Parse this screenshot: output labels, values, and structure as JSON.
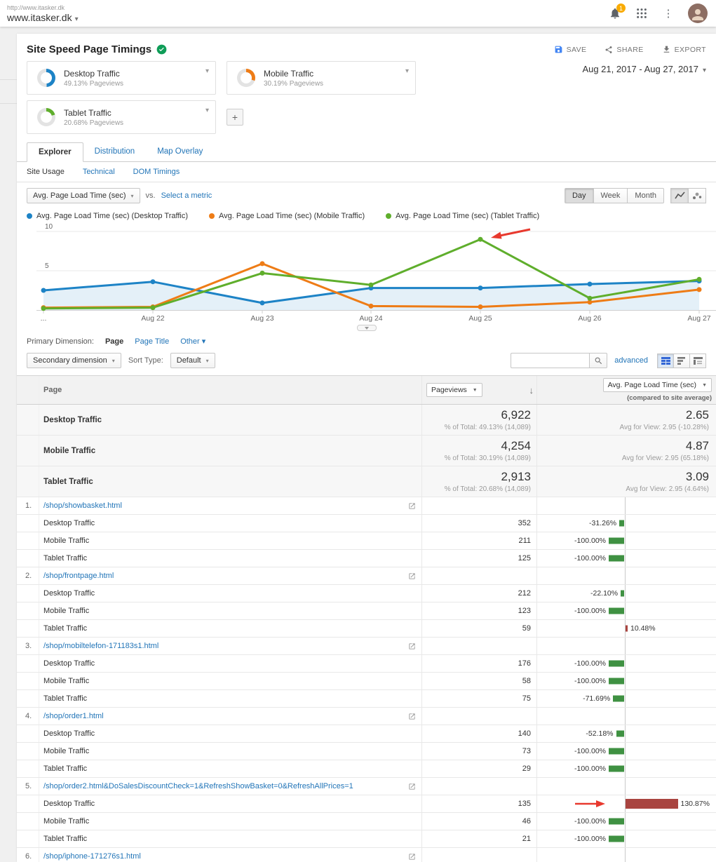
{
  "topbar": {
    "url_small": "http://www.itasker.dk",
    "account_title": "www.itasker.dk",
    "notification_count": "1"
  },
  "header": {
    "title": "Site Speed Page Timings",
    "actions": [
      "SAVE",
      "SHARE",
      "EXPORT"
    ]
  },
  "segments": [
    {
      "name": "Desktop Traffic",
      "detail": "49.13% Pageviews",
      "pct": 49.13,
      "color": "#1d83c6"
    },
    {
      "name": "Mobile Traffic",
      "detail": "30.19% Pageviews",
      "pct": 30.19,
      "color": "#ee7c16"
    },
    {
      "name": "Tablet Traffic",
      "detail": "20.68% Pageviews",
      "pct": 20.68,
      "color": "#5fae2c"
    }
  ],
  "date_range": "Aug 21, 2017 - Aug 27, 2017",
  "tabs": [
    "Explorer",
    "Distribution",
    "Map Overlay"
  ],
  "subtabs": [
    "Site Usage",
    "Technical",
    "DOM Timings"
  ],
  "metric_bar": {
    "metric": "Avg. Page Load Time (sec)",
    "vs_label": "vs.",
    "select_metric_label": "Select a metric",
    "granularity": [
      "Day",
      "Week",
      "Month"
    ],
    "active_granularity": "Day"
  },
  "chart_data": {
    "type": "line",
    "x_labels": [
      "...",
      "Aug 22",
      "Aug 23",
      "Aug 24",
      "Aug 25",
      "Aug 26",
      "Aug 27"
    ],
    "ylim": [
      0,
      10
    ],
    "y_ticks": [
      5,
      10
    ],
    "unit": "sec",
    "series": [
      {
        "name": "Avg. Page Load Time (sec) (Desktop Traffic)",
        "color": "#1d83c6",
        "area": true,
        "values": [
          2.5,
          3.6,
          0.9,
          2.8,
          2.8,
          3.3,
          3.7
        ]
      },
      {
        "name": "Avg. Page Load Time (sec) (Mobile Traffic)",
        "color": "#ee7c16",
        "values": [
          0.3,
          0.4,
          5.9,
          0.5,
          0.4,
          1.0,
          2.6
        ]
      },
      {
        "name": "Avg. Page Load Time (sec) (Tablet Traffic)",
        "color": "#5fae2c",
        "values": [
          0.2,
          0.3,
          4.7,
          3.2,
          9.0,
          1.5,
          3.9
        ]
      }
    ],
    "annotation": {
      "type": "arrow",
      "target": "Tablet Traffic peak on Aug 25"
    }
  },
  "primary_dimension": {
    "label": "Primary Dimension:",
    "options": [
      "Page",
      "Page Title",
      "Other"
    ],
    "active": "Page"
  },
  "controls": {
    "secondary_dimension": "Secondary dimension",
    "sort_type_label": "Sort Type:",
    "sort_type_value": "Default",
    "search_value": "",
    "advanced_label": "advanced"
  },
  "colors": {
    "negative_bar": "#3f9142",
    "positive_bar": "#a94440",
    "annotation_arrow": "#e8392e",
    "link": "#2275b8",
    "notification_badge": "#f9ab00"
  },
  "table": {
    "columns": {
      "page": "Page",
      "pageviews": "Pageviews",
      "metric": "Avg. Page Load Time (sec)",
      "metric_sub": "(compared to site average)"
    },
    "summary": [
      {
        "label": "Desktop Traffic",
        "pageviews": "6,922",
        "pv_sub": "% of Total: 49.13% (14,089)",
        "value": "2.65",
        "value_sub": "Avg for View: 2.95 (-10.28%)"
      },
      {
        "label": "Mobile Traffic",
        "pageviews": "4,254",
        "pv_sub": "% of Total: 30.19% (14,089)",
        "value": "4.87",
        "value_sub": "Avg for View: 2.95 (65.18%)"
      },
      {
        "label": "Tablet Traffic",
        "pageviews": "2,913",
        "pv_sub": "% of Total: 20.68% (14,089)",
        "value": "3.09",
        "value_sub": "Avg for View: 2.95 (4.64%)"
      }
    ],
    "groups": [
      {
        "index": "1.",
        "page": "/shop/showbasket.html",
        "rows": [
          {
            "label": "Desktop Traffic",
            "pageviews": "352",
            "pct": -31.26,
            "pct_label": "-31.26%"
          },
          {
            "label": "Mobile Traffic",
            "pageviews": "211",
            "pct": -100.0,
            "pct_label": "-100.00%"
          },
          {
            "label": "Tablet Traffic",
            "pageviews": "125",
            "pct": -100.0,
            "pct_label": "-100.00%"
          }
        ]
      },
      {
        "index": "2.",
        "page": "/shop/frontpage.html",
        "rows": [
          {
            "label": "Desktop Traffic",
            "pageviews": "212",
            "pct": -22.1,
            "pct_label": "-22.10%"
          },
          {
            "label": "Mobile Traffic",
            "pageviews": "123",
            "pct": -100.0,
            "pct_label": "-100.00%"
          },
          {
            "label": "Tablet Traffic",
            "pageviews": "59",
            "pct": 10.48,
            "pct_label": "10.48%"
          }
        ]
      },
      {
        "index": "3.",
        "page": "/shop/mobiltelefon-171183s1.html",
        "rows": [
          {
            "label": "Desktop Traffic",
            "pageviews": "176",
            "pct": -100.0,
            "pct_label": "-100.00%"
          },
          {
            "label": "Mobile Traffic",
            "pageviews": "58",
            "pct": -100.0,
            "pct_label": "-100.00%"
          },
          {
            "label": "Tablet Traffic",
            "pageviews": "75",
            "pct": -71.69,
            "pct_label": "-71.69%"
          }
        ]
      },
      {
        "index": "4.",
        "page": "/shop/order1.html",
        "rows": [
          {
            "label": "Desktop Traffic",
            "pageviews": "140",
            "pct": -52.18,
            "pct_label": "-52.18%"
          },
          {
            "label": "Mobile Traffic",
            "pageviews": "73",
            "pct": -100.0,
            "pct_label": "-100.00%"
          },
          {
            "label": "Tablet Traffic",
            "pageviews": "29",
            "pct": -100.0,
            "pct_label": "-100.00%"
          }
        ]
      },
      {
        "index": "5.",
        "page": "/shop/order2.html&DoSalesDiscountCheck=1&RefreshShowBasket=0&RefreshAllPrices=1",
        "rows": [
          {
            "label": "Desktop Traffic",
            "pageviews": "135",
            "pct": 130.87,
            "pct_label": "130.87%",
            "highlight": true
          },
          {
            "label": "Mobile Traffic",
            "pageviews": "46",
            "pct": -100.0,
            "pct_label": "-100.00%"
          },
          {
            "label": "Tablet Traffic",
            "pageviews": "21",
            "pct": -100.0,
            "pct_label": "-100.00%"
          }
        ]
      },
      {
        "index": "6.",
        "page": "/shop/iphone-171276s1.html",
        "rows": []
      }
    ]
  }
}
